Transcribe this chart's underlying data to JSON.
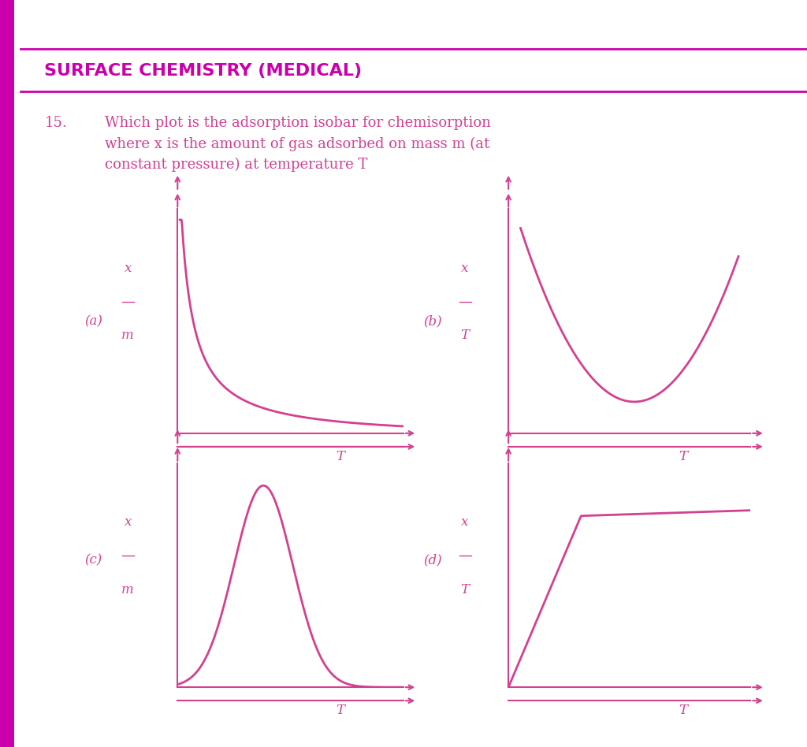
{
  "bg_color": "#ffffff",
  "left_bar_color": "#cc00aa",
  "title": "SURFACE CHEMISTRY (MEDICAL)",
  "q_number": "15.",
  "q_line1": "Which plot is the adsorption isobar for chemisorption",
  "q_line2": "where x is the amount of gas adsorbed on mass m (at",
  "q_line3": "constant pressure) at temperature T",
  "curve_color": "#d44090",
  "axes_color": "#d44090",
  "text_color": "#d44090",
  "title_color": "#cc00aa",
  "label_a": "(a)",
  "label_b": "(b)",
  "label_c": "(c)",
  "label_d": "(d)",
  "xlabel": "T"
}
